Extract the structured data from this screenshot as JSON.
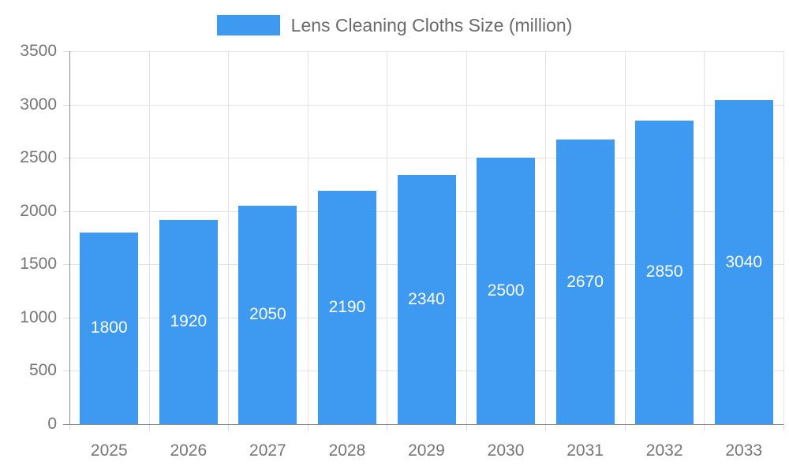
{
  "legend": {
    "swatch_color": "#3d9af0"
  },
  "chart_data": {
    "type": "bar",
    "title": "Lens Cleaning Cloths Size (million)",
    "categories": [
      "2025",
      "2026",
      "2027",
      "2028",
      "2029",
      "2030",
      "2031",
      "2032",
      "2033"
    ],
    "values": [
      1800,
      1920,
      2050,
      2190,
      2340,
      2500,
      2670,
      2850,
      3040
    ],
    "series": [
      {
        "name": "Lens Cleaning Cloths Size (million)",
        "values": [
          1800,
          1920,
          2050,
          2190,
          2340,
          2500,
          2670,
          2850,
          3040
        ]
      }
    ],
    "xlabel": "",
    "ylabel": "",
    "ylim": [
      0,
      3500
    ],
    "yticks": [
      0,
      500,
      1000,
      1500,
      2000,
      2500,
      3000,
      3500
    ],
    "grid": true,
    "legend_position": "top",
    "bar_color": "#3d9af0",
    "bar_label_color": "#ffffff",
    "axis_text_color": "#757575",
    "grid_color": "#e3e3e3",
    "axis_line_color": "#8c8c8c"
  }
}
